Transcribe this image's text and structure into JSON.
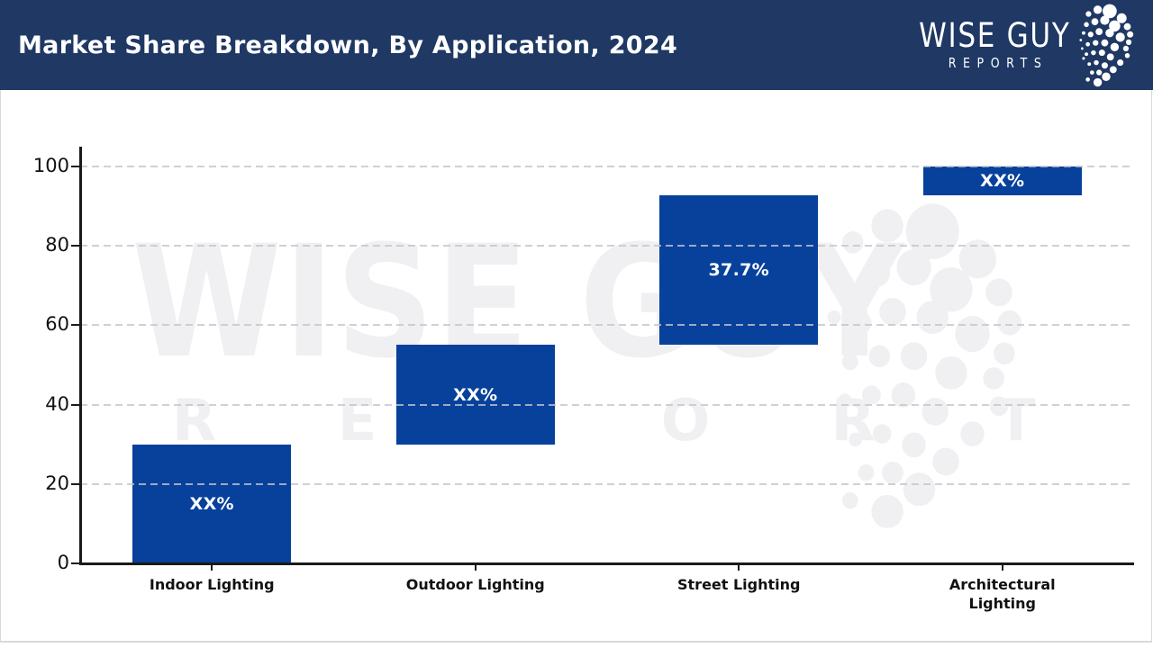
{
  "header": {
    "title": "Market Share Breakdown, By Application, 2024",
    "logo": {
      "line1": "WISE GUY",
      "line2": "REPORTS"
    },
    "bg_color": "#1F3864"
  },
  "watermark": {
    "line1": "WISE GUY",
    "line2": "R E P O R T S"
  },
  "chart_data": {
    "type": "bar",
    "subtype": "floating-waterfall",
    "title": "Market Share Breakdown, By Application, 2024",
    "categories": [
      "Indoor Lighting",
      "Outdoor Lighting",
      "Street Lighting",
      "Architectural Lighting"
    ],
    "series": [
      {
        "name": "Market Share %",
        "segments": [
          {
            "category": "Indoor Lighting",
            "start": 0,
            "end": 30,
            "label": "XX%"
          },
          {
            "category": "Outdoor Lighting",
            "start": 30,
            "end": 55,
            "label": "XX%"
          },
          {
            "category": "Street Lighting",
            "start": 55,
            "end": 92.7,
            "label": "37.7%"
          },
          {
            "category": "Architectural Lighting",
            "start": 92.7,
            "end": 100,
            "label": "XX%"
          }
        ]
      }
    ],
    "yticks": [
      0,
      20,
      40,
      60,
      80,
      100
    ],
    "ylim": [
      0,
      105
    ],
    "xlabel": "",
    "ylabel": "",
    "legend": "none",
    "grid": "horizontal-dashed",
    "bar_color": "#07419B",
    "axis_color": "#1a1a1a",
    "grid_color": "#d9d9dd"
  }
}
